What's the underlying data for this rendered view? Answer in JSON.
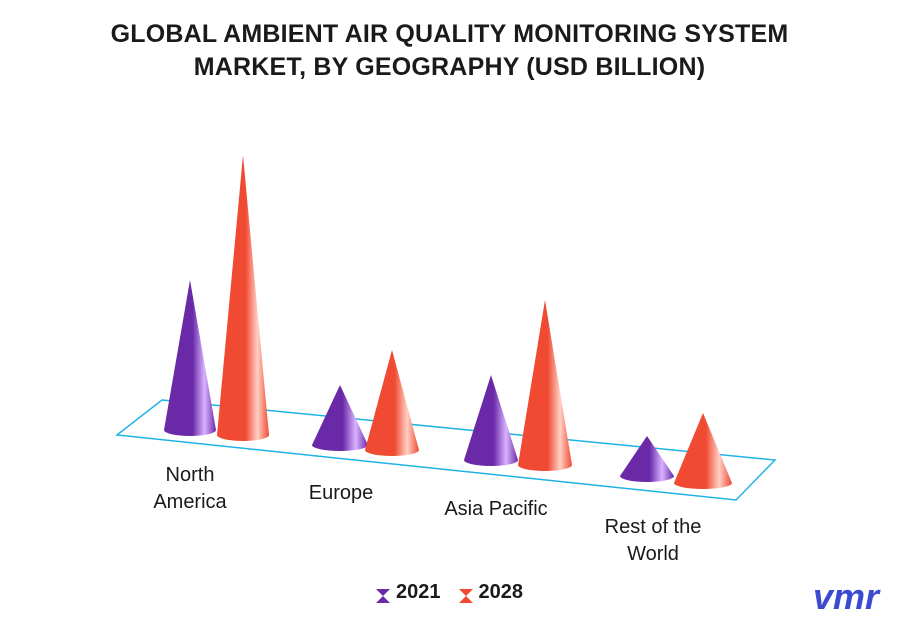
{
  "title_lines": [
    "GLOBAL AMBIENT AIR QUALITY MONITORING SYSTEM",
    "MARKET, BY GEOGRAPHY (USD BILLION)"
  ],
  "colors": {
    "s2021": "#6a2aa8",
    "s2028": "#f04a33",
    "floor": "#1fb3e6",
    "logo": "#3b4bd1"
  },
  "logo_text": "vmr",
  "chart_data": {
    "type": "bar",
    "style": "3d-cone",
    "title": "GLOBAL AMBIENT AIR QUALITY MONITORING SYSTEM MARKET, BY GEOGRAPHY (USD BILLION)",
    "categories": [
      "North\nAmerica",
      "Europe",
      "Asia Pacific",
      "Rest of the\nWorld"
    ],
    "series": [
      {
        "name": "2021",
        "values": [
          1.5,
          0.6,
          0.85,
          0.4
        ]
      },
      {
        "name": "2028",
        "values": [
          2.8,
          1.0,
          1.65,
          0.7
        ]
      }
    ],
    "legend": "bottom-center",
    "grid": false
  }
}
